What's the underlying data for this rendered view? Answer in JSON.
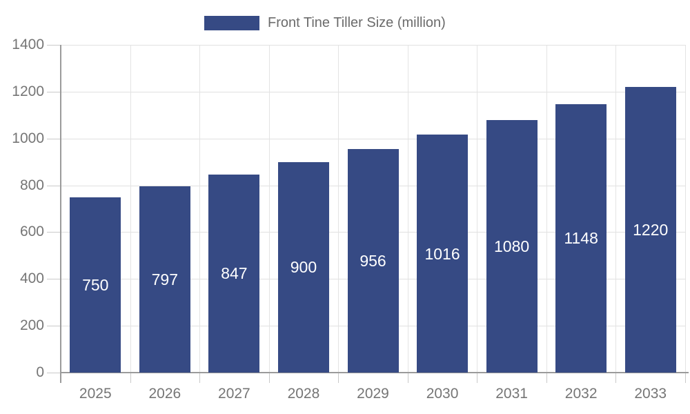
{
  "legend": {
    "label": "Front Tine Tiller Size (million)",
    "swatch_color": "#364a84"
  },
  "chart_data": {
    "type": "bar",
    "title": "",
    "xlabel": "",
    "ylabel": "",
    "categories": [
      "2025",
      "2026",
      "2027",
      "2028",
      "2029",
      "2030",
      "2031",
      "2032",
      "2033"
    ],
    "series": [
      {
        "name": "Front Tine Tiller Size (million)",
        "values": [
          750,
          797,
          847,
          900,
          956,
          1016,
          1080,
          1148,
          1220
        ]
      }
    ],
    "value_labels": [
      "750",
      "797",
      "847",
      "900",
      "956",
      "1016",
      "1080",
      "1148",
      "1220"
    ],
    "ylim": [
      0,
      1400
    ],
    "yticks": [
      0,
      200,
      400,
      600,
      800,
      1000,
      1200,
      1400
    ],
    "ytick_labels": [
      "0",
      "200",
      "400",
      "600",
      "800",
      "1000",
      "1200",
      "1400"
    ],
    "grid": true,
    "legend_position": "top",
    "bar_color": "#364a84",
    "value_label_color": "#ffffff",
    "axis_label_color": "#757575",
    "grid_color": "#e0e0e0",
    "axis_line_color": "#9b9b9b"
  }
}
